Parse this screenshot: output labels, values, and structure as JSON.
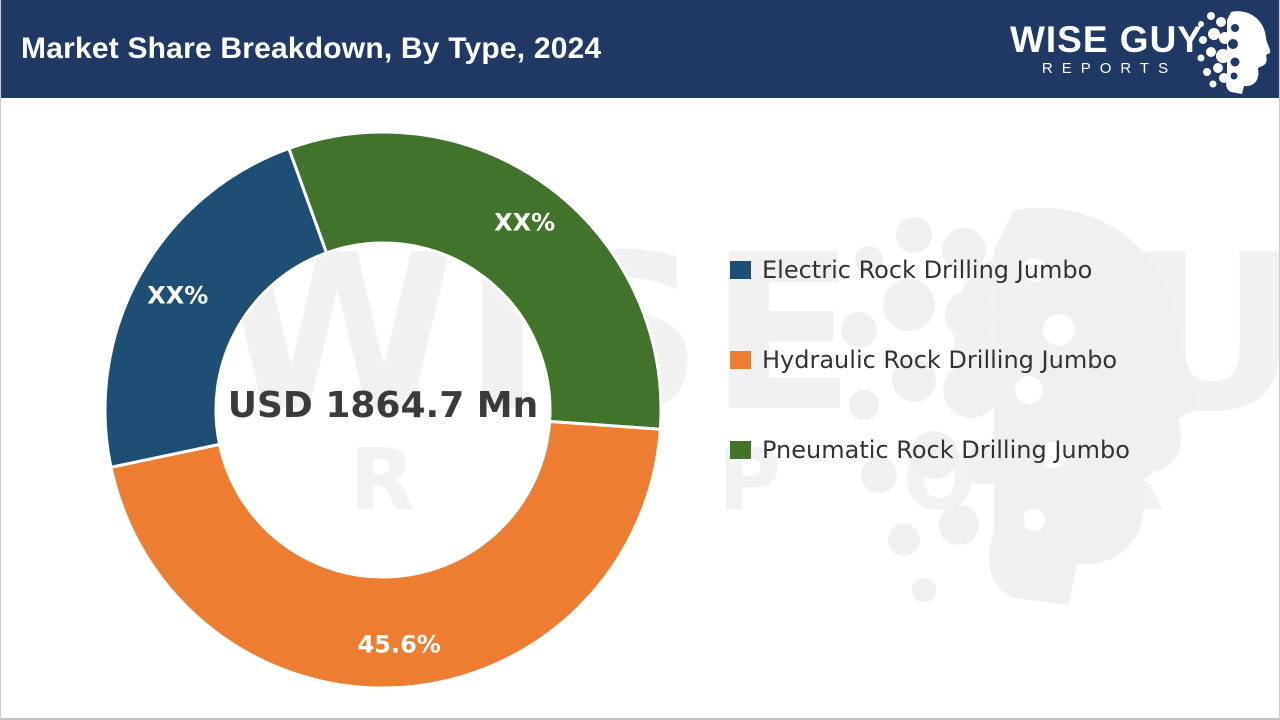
{
  "header": {
    "title": "Market Share Breakdown, By Type, 2024",
    "bg_color": "#1F3864",
    "logo": {
      "line1": "WISE GUY",
      "line2": "REPORTS"
    }
  },
  "chart_data": {
    "type": "pie",
    "subtype": "donut",
    "title": "Market Share Breakdown, By Type, 2024",
    "center_label": "USD 1864.7 Mn",
    "start_angle_deg": -19.8,
    "legend_position": "right",
    "segments": [
      {
        "label": "Pneumatic Rock Drilling Jumbo",
        "value_pct": 31.6,
        "display_label": "XX%",
        "color": "#41732A"
      },
      {
        "label": "Hydraulic Rock Drilling Jumbo",
        "value_pct": 45.6,
        "display_label": "45.6%",
        "color": "#ED7D31"
      },
      {
        "label": "Electric Rock Drilling Jumbo",
        "value_pct": 22.8,
        "display_label": "XX%",
        "color": "#1F4E75"
      }
    ]
  },
  "legend": {
    "items": [
      {
        "label": "Electric Rock Drilling Jumbo",
        "color": "#1F4E75"
      },
      {
        "label": "Hydraulic Rock Drilling Jumbo",
        "color": "#ED7D31"
      },
      {
        "label": "Pneumatic Rock Drilling Jumbo",
        "color": "#41732A"
      }
    ]
  },
  "watermark": {
    "line1": "WISE GUY",
    "line2": "R E P O R T S"
  },
  "styles": {
    "slice_label_color": "#ffffff",
    "center_label_color": "#3a3a3a",
    "separator_color": "#ffffff"
  }
}
